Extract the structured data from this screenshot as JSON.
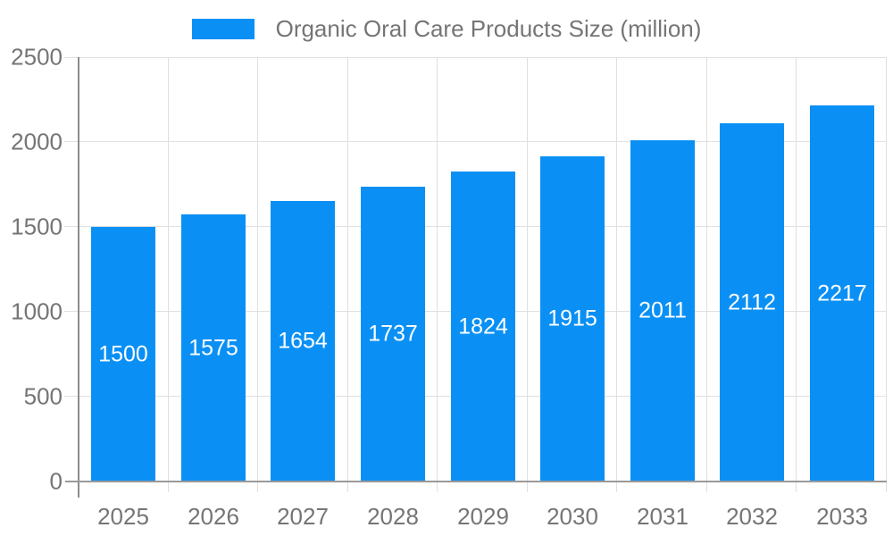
{
  "chart_data": {
    "type": "bar",
    "legend_label": "Organic Oral Care Products Size (million)",
    "categories": [
      "2025",
      "2026",
      "2027",
      "2028",
      "2029",
      "2030",
      "2031",
      "2032",
      "2033"
    ],
    "values": [
      1500,
      1575,
      1654,
      1737,
      1824,
      1915,
      2011,
      2112,
      2217
    ],
    "value_labels_inside_bars": true,
    "xlabel": "",
    "ylabel": "",
    "ylim": [
      0,
      2500
    ],
    "yticks": [
      0,
      500,
      1000,
      1500,
      2000,
      2500
    ],
    "grid": true,
    "legend_position": "top",
    "colors": {
      "bar": "#0a90f5",
      "value_label": "#ffffff",
      "axis_text": "#757575",
      "axis_line": "#8c8c8c",
      "gridline": "#e0e0e0"
    }
  }
}
